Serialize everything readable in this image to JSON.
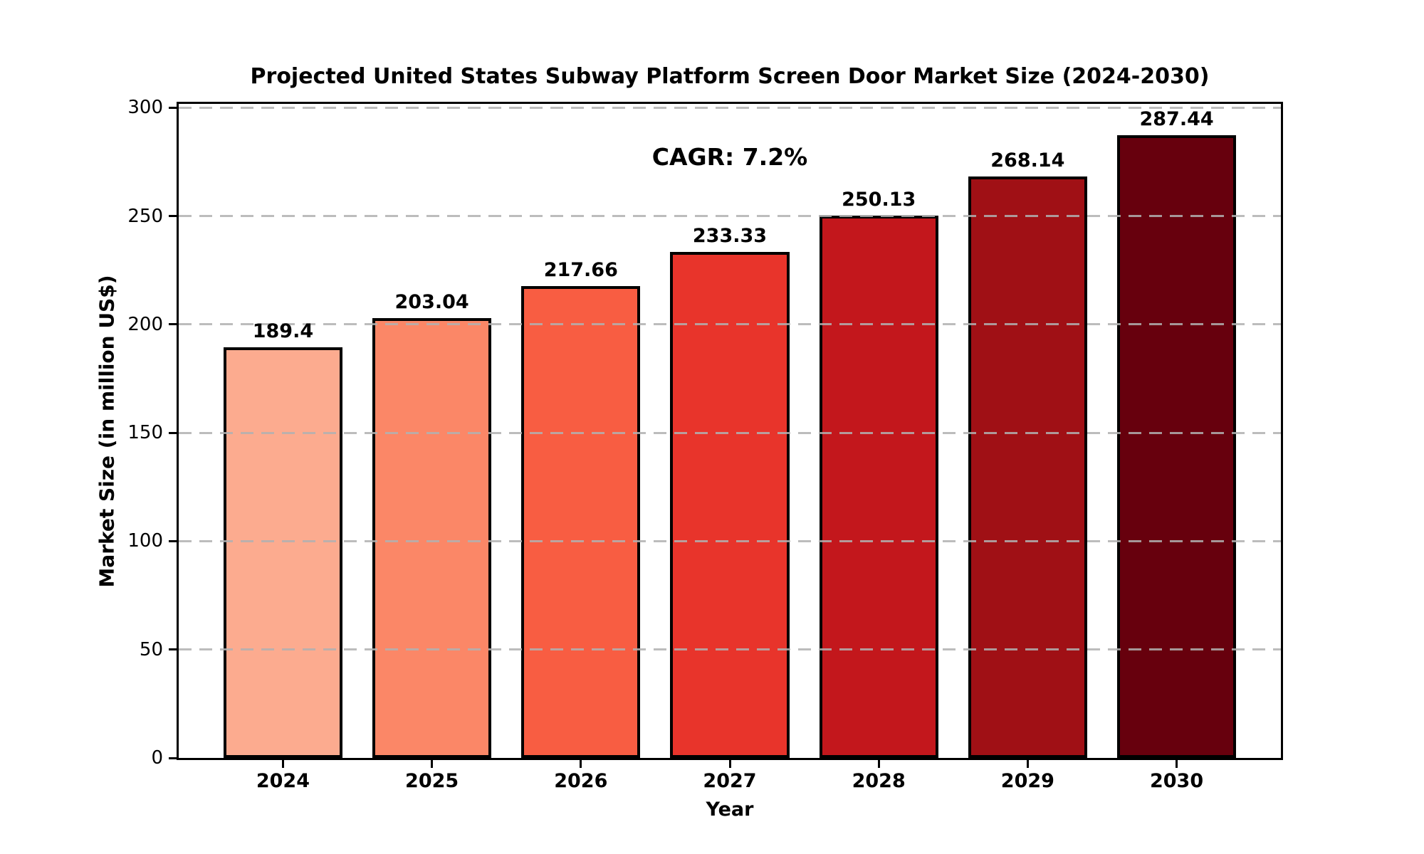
{
  "chart_data": {
    "type": "bar",
    "title": "Projected United States Subway Platform Screen Door Market Size (2024-2030)",
    "annotation": "CAGR: 7.2%",
    "xlabel": "Year",
    "ylabel": "Market Size (in million US$)",
    "categories": [
      "2024",
      "2025",
      "2026",
      "2027",
      "2028",
      "2029",
      "2030"
    ],
    "values": [
      189.4,
      203.04,
      217.66,
      233.33,
      250.13,
      268.14,
      287.44
    ],
    "value_labels": [
      "189.4",
      "203.04",
      "217.66",
      "233.33",
      "250.13",
      "268.14",
      "287.44"
    ],
    "bar_colors": [
      "#fcab8f",
      "#fb8767",
      "#f85d42",
      "#e8342b",
      "#c3171c",
      "#a01015",
      "#67000d"
    ],
    "bar_edge_color": "#000000",
    "ylim": [
      0,
      301.8
    ],
    "yticks": [
      0,
      50,
      100,
      150,
      200,
      250,
      300
    ],
    "grid": "horizontal-dashed",
    "gridline_color": "#b0b0b0",
    "background_color": "#ffffff",
    "legend_position": "none"
  }
}
